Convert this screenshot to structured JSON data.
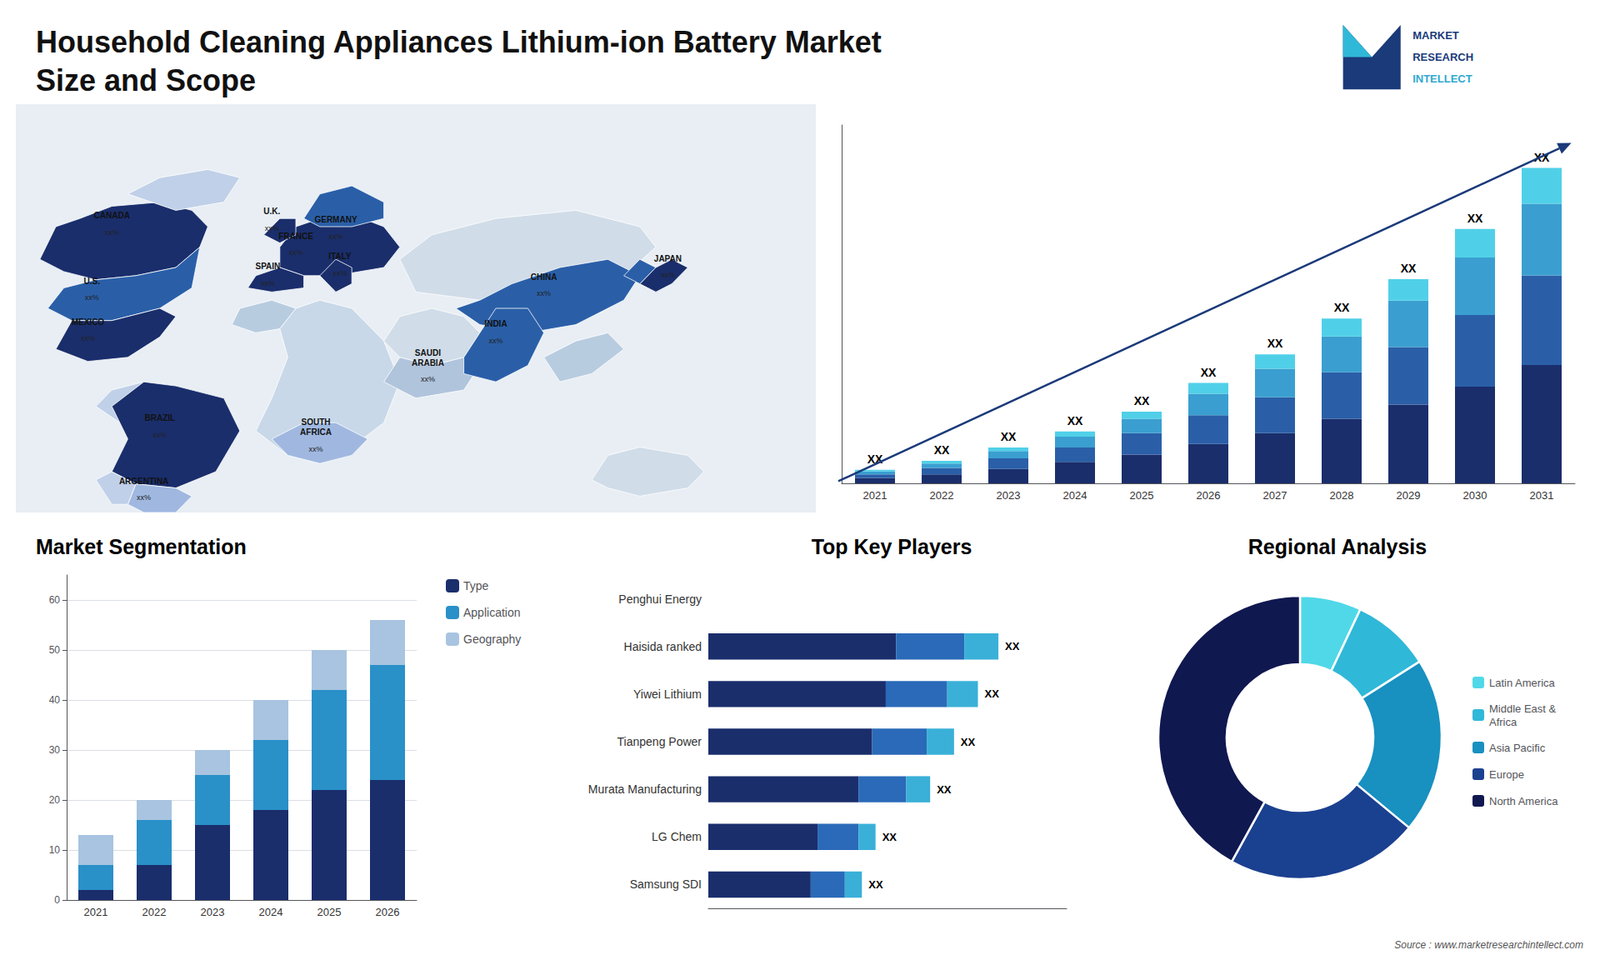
{
  "title": "Household Cleaning Appliances Lithium-ion Battery Market\nSize and Scope",
  "annotations": [
    "MARKET",
    "RESEARCH",
    "INTELLECT",
    "Source : www.marketresearchintellect.com"
  ],
  "chart_data": [
    {
      "type": "map",
      "annotations": [
        {
          "text": "CANADA",
          "label": "xx%"
        },
        {
          "text": "U.S.",
          "label": "xx%"
        },
        {
          "text": "MEXICO",
          "label": "xx%"
        },
        {
          "text": "BRAZIL",
          "label": "xx%"
        },
        {
          "text": "ARGENTINA",
          "label": "xx%"
        },
        {
          "text": "U.K.",
          "label": "xx%"
        },
        {
          "text": "FRANCE",
          "label": "xx%"
        },
        {
          "text": "SPAIN",
          "label": "xx%"
        },
        {
          "text": "GERMANY",
          "label": "xx%"
        },
        {
          "text": "ITALY",
          "label": "xx%"
        },
        {
          "text": "SAUDI\nARABIA",
          "label": "xx%"
        },
        {
          "text": "SOUTH\nAFRICA",
          "label": "xx%"
        },
        {
          "text": "CHINA",
          "label": "xx%"
        },
        {
          "text": "INDIA",
          "label": "xx%"
        },
        {
          "text": "JAPAN",
          "label": "xx%"
        }
      ]
    },
    {
      "type": "bar",
      "stacked": true,
      "categories": [
        "2021",
        "2022",
        "2023",
        "2024",
        "2025",
        "2026",
        "2027",
        "2028",
        "2029",
        "2030",
        "2031"
      ],
      "series": [
        {
          "color": "#1a2e6c",
          "values": [
            1.5,
            2.5,
            4,
            6,
            8,
            11,
            14,
            18,
            22,
            27,
            33
          ]
        },
        {
          "color": "#2a5fa8",
          "values": [
            1.0,
            1.8,
            3,
            4,
            6,
            8,
            10,
            13,
            16,
            20,
            25
          ]
        },
        {
          "color": "#3a9fd0",
          "values": [
            0.8,
            1.2,
            2,
            3,
            4,
            6,
            8,
            10,
            13,
            16,
            20
          ]
        },
        {
          "color": "#50d0e8",
          "values": [
            0.5,
            0.8,
            1,
            1.5,
            2,
            3,
            4,
            5,
            6,
            8,
            10
          ]
        }
      ],
      "ylim": [
        0,
        100
      ],
      "tick_labels": "x",
      "grid": false,
      "annotations": [
        "XX",
        "XX",
        "XX",
        "XX",
        "XX",
        "XX",
        "XX",
        "XX",
        "XX",
        "XX",
        "XX"
      ]
    },
    {
      "type": "bar",
      "title": "Market Segmentation",
      "stacked": true,
      "categories": [
        "2021",
        "2022",
        "2023",
        "2024",
        "2025",
        "2026"
      ],
      "series": [
        {
          "name": "Type",
          "color": "#1a2e6c",
          "values": [
            2,
            7,
            15,
            18,
            22,
            24
          ]
        },
        {
          "name": "Application",
          "color": "#2a90c8",
          "values": [
            5,
            9,
            10,
            14,
            20,
            23
          ]
        },
        {
          "name": "Geography",
          "color": "#a8c4e0",
          "values": [
            6,
            4,
            5,
            8,
            8,
            9
          ]
        }
      ],
      "ylim": [
        0,
        65
      ],
      "yticks": [
        0,
        10,
        20,
        30,
        40,
        50,
        60
      ],
      "grid": true,
      "legend": "right"
    },
    {
      "type": "bar",
      "title": "Top Key Players",
      "orientation": "horizontal",
      "stacked": true,
      "categories": [
        "Penghui Energy",
        "Haisida ranked",
        "Yiwei Lithium",
        "Tianpeng Power",
        "Murata Manufacturing",
        "LG Chem",
        "Samsung SDI"
      ],
      "series": [
        {
          "color": "#1a2e6c",
          "values": [
            0,
            55,
            52,
            48,
            44,
            32,
            30
          ]
        },
        {
          "color": "#2a6ab8",
          "values": [
            0,
            20,
            18,
            16,
            14,
            12,
            10
          ]
        },
        {
          "color": "#3ab0d8",
          "values": [
            0,
            10,
            9,
            8,
            7,
            5,
            5
          ]
        }
      ],
      "xlim": [
        0,
        105
      ],
      "tick_labels": "y",
      "grid": false,
      "annotations": [
        null,
        "XX",
        "XX",
        "XX",
        "XX",
        "XX",
        "XX"
      ]
    },
    {
      "type": "pie",
      "title": "Regional Analysis",
      "categories": [
        "Latin America",
        "Middle East &\nAfrica",
        "Asia Pacific",
        "Europe",
        "North America"
      ],
      "values": [
        7,
        9,
        20,
        22,
        42
      ],
      "colors": [
        "#50d8e8",
        "#30b8d8",
        "#1890c0",
        "#1a4090",
        "#101850"
      ],
      "legend": "right"
    }
  ]
}
